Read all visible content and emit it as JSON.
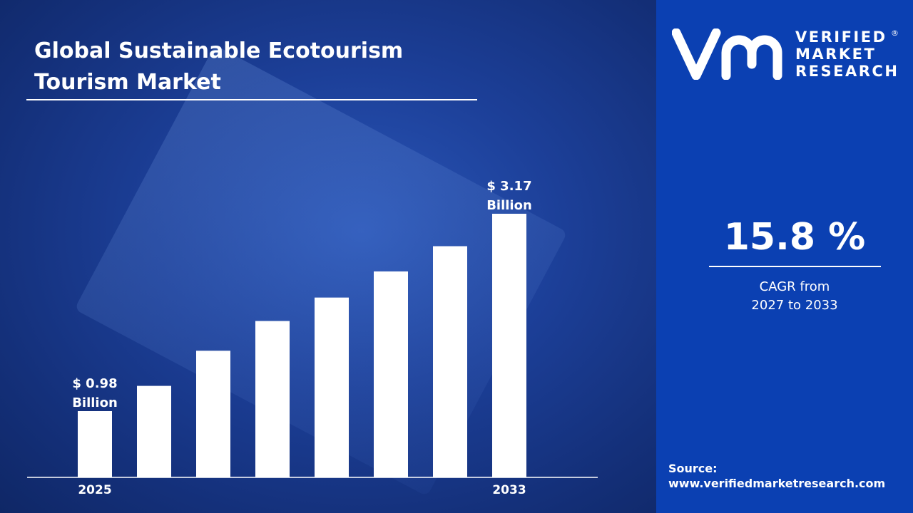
{
  "title": "Global Sustainable Ecotourism Tourism Market",
  "brand": {
    "logo_mark": "vmr",
    "line1": "VERIFIED",
    "line2": "MARKET",
    "line3": "RESEARCH",
    "registered": "®"
  },
  "cagr": {
    "value": "15.8 %",
    "label_line1": "CAGR from",
    "label_line2": "2027 to 2033"
  },
  "source": {
    "label": "Source:",
    "url": "www.verifiedmarketresearch.com"
  },
  "colors": {
    "panel": "#0b40b2",
    "bars": "#ffffff"
  },
  "chart_data": {
    "type": "bar",
    "title": "Global Sustainable Ecotourism Tourism Market",
    "tick_labels": [
      "2025",
      "",
      "",
      "",
      "",
      "",
      "",
      "2033"
    ],
    "values": [
      0.98,
      1.26,
      1.65,
      1.98,
      2.24,
      2.53,
      2.81,
      3.17
    ],
    "data_labels": [
      {
        "index": 0,
        "line1": "$ 0.98",
        "line2": "Billion"
      },
      {
        "index": 7,
        "line1": "$ 3.17",
        "line2": "Billion"
      }
    ],
    "unit": "USD Billion",
    "grid": false
  }
}
